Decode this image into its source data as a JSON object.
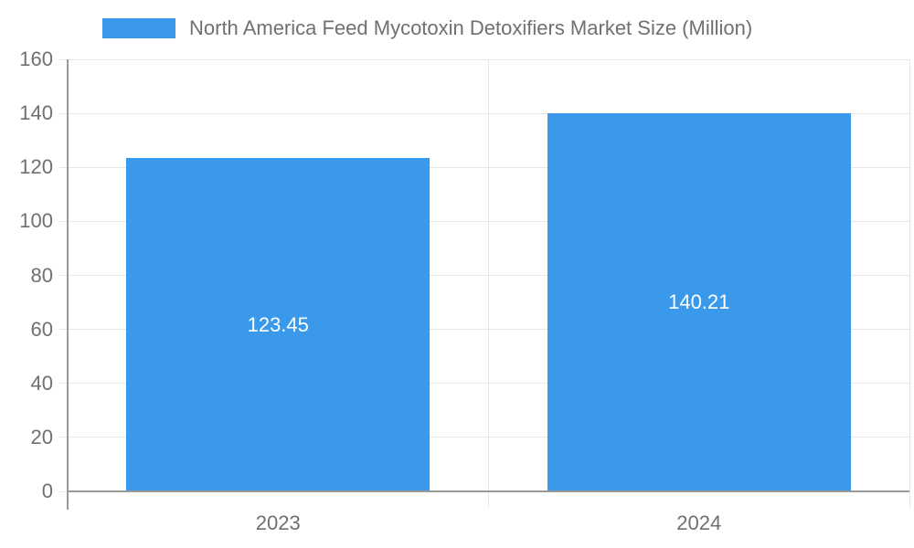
{
  "chart_data": {
    "type": "bar",
    "title": "North America Feed Mycotoxin Detoxifiers Market Size (Million)",
    "categories": [
      "2023",
      "2024"
    ],
    "values": [
      123.45,
      140.21
    ],
    "value_labels": [
      "123.45",
      "140.21"
    ],
    "xlabel": "",
    "ylabel": "",
    "ylim": [
      0,
      160
    ],
    "yticks": [
      0,
      20,
      40,
      60,
      80,
      100,
      120,
      140,
      160
    ],
    "grid": true,
    "legend_position": "top",
    "colors": {
      "bar": "#3b99ec",
      "axis_text": "#707070",
      "legend_text": "#707070",
      "value_label_text": "#ffffff",
      "axis_line": "#999999",
      "gridline": "#e6e6e6",
      "background": "#ffffff"
    }
  }
}
